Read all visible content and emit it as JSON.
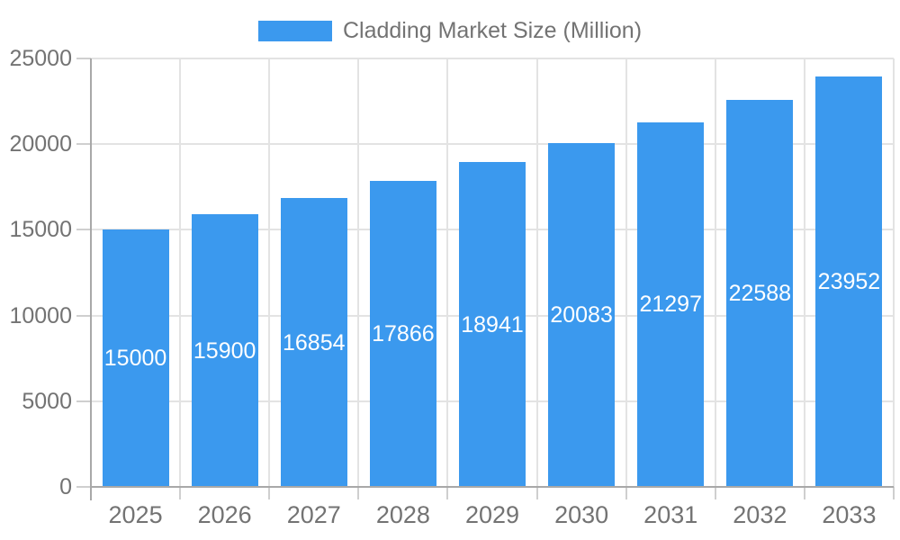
{
  "legend": {
    "label": "Cladding Market Size (Million)"
  },
  "chart_data": {
    "type": "bar",
    "title": "Cladding Market Size (Million)",
    "series_name": "Cladding Market Size (Million)",
    "categories": [
      "2025",
      "2026",
      "2027",
      "2028",
      "2029",
      "2030",
      "2031",
      "2032",
      "2033"
    ],
    "values": [
      15000,
      15900,
      16854,
      17866,
      18941,
      20083,
      21297,
      22588,
      23952
    ],
    "bar_value_labels": [
      "15000",
      "15900",
      "16854",
      "17866",
      "18941",
      "20083",
      "21297",
      "22588",
      "23952"
    ],
    "xlabel": "",
    "ylabel": "",
    "ylim": [
      0,
      25000
    ],
    "yticks": [
      0,
      5000,
      10000,
      15000,
      20000,
      25000
    ],
    "grid": true,
    "legend_position": "top",
    "value_label_position": "inside-center",
    "colors": {
      "bar": "#3B99EE",
      "bar_label": "#FFFFFF",
      "axis_text": "#737373",
      "axis_line": "#A8A8A8",
      "gridline": "#E3E3E3",
      "tick": "#CFCFCF",
      "background": "#FFFFFF"
    }
  }
}
